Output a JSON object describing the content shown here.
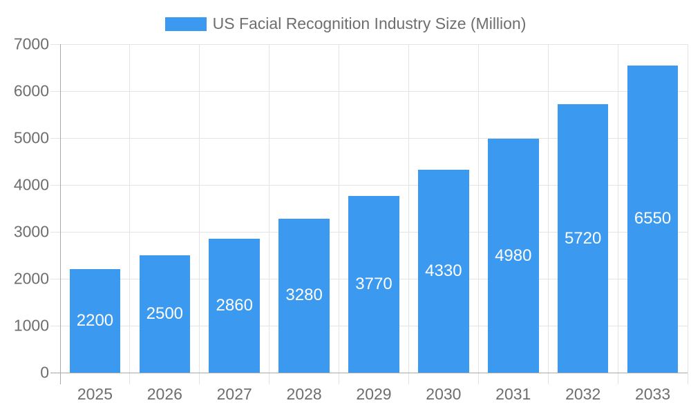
{
  "chart_data": {
    "type": "bar",
    "title": "US Facial Recognition Industry Size (Million)",
    "series_name": "US Facial Recognition Industry Size (Million)",
    "categories": [
      "2025",
      "2026",
      "2027",
      "2028",
      "2029",
      "2030",
      "2031",
      "2032",
      "2033"
    ],
    "values": [
      2200,
      2500,
      2860,
      3280,
      3770,
      4330,
      4980,
      5720,
      6550
    ],
    "xlabel": "",
    "ylabel": "",
    "ylim": [
      0,
      7000
    ],
    "yticks": [
      0,
      1000,
      2000,
      3000,
      4000,
      5000,
      6000,
      7000
    ],
    "grid": true,
    "legend_position": "top",
    "value_label_position": "inside-center",
    "colors": {
      "bar": "#3B99F0",
      "grid_light": "#E3E3E3",
      "axis_dark": "#A8A8A8",
      "tick_text": "#6E6E6E",
      "legend_text": "#6E6E6E",
      "value_label_text": "#FFFFFF",
      "background": "#FFFFFF"
    }
  }
}
